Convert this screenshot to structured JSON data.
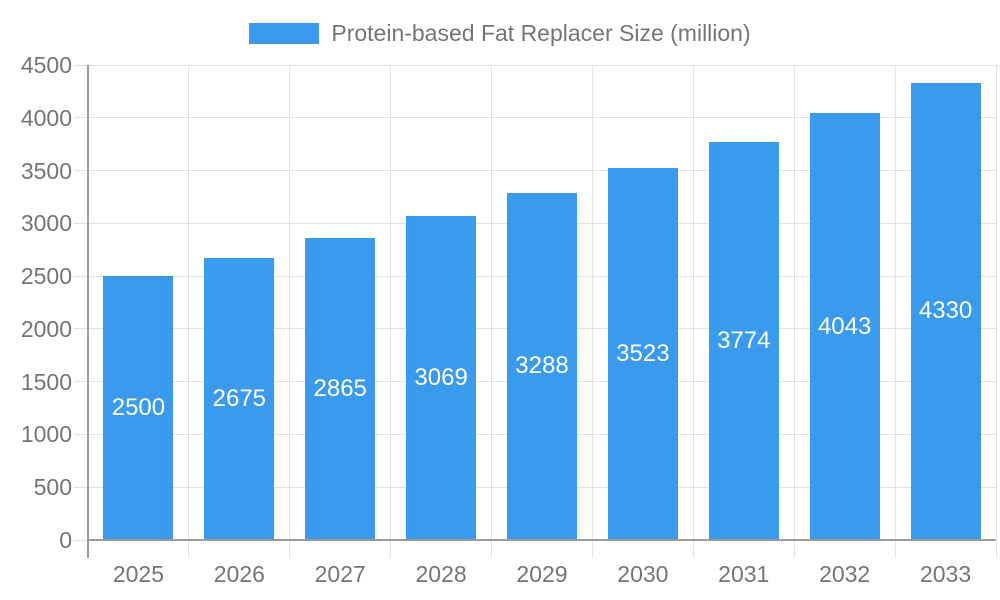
{
  "chart_data": {
    "type": "bar",
    "title": "Protein-based Fat Replacer Size (million)",
    "legend": {
      "position": "top",
      "label": "Protein-based Fat Replacer Size (million)"
    },
    "categories": [
      "2025",
      "2026",
      "2027",
      "2028",
      "2029",
      "2030",
      "2031",
      "2032",
      "2033"
    ],
    "values": [
      2500,
      2675,
      2865,
      3069,
      3288,
      3523,
      3774,
      4043,
      4330
    ],
    "xlabel": "",
    "ylabel": "",
    "ylim": [
      0,
      4500
    ],
    "ytick_step": 500,
    "grid": true,
    "bar_label_position": "center-inside",
    "colors": {
      "bar": "#3a9aed",
      "bar_label": "#ffffff",
      "axis_text": "#757575",
      "grid_line": "#e2e2e2",
      "axis_line": "#9b9b9b",
      "background": "#ffffff"
    }
  }
}
